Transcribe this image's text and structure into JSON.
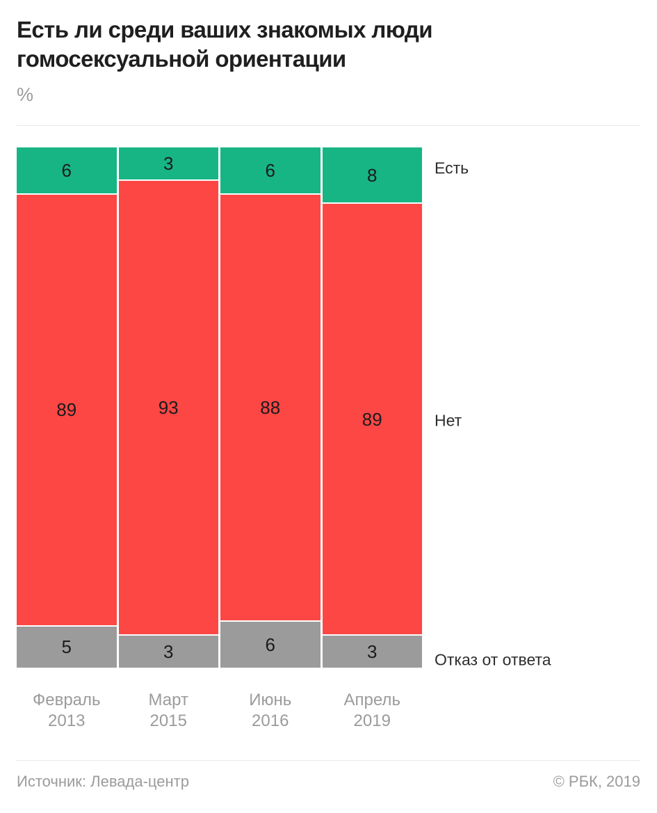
{
  "header": {
    "title": "Есть ли среди ваших знакомых люди гомосексуальной ориентации",
    "unit_label": "%"
  },
  "chart_data": {
    "type": "bar",
    "stacked": true,
    "orientation": "vertical",
    "unit": "%",
    "title": "Есть ли среди ваших знакомых люди гомосексуальной ориентации",
    "categories": [
      [
        "Февраль",
        "2013"
      ],
      [
        "Март",
        "2015"
      ],
      [
        "Июнь",
        "2016"
      ],
      [
        "Апрель",
        "2019"
      ]
    ],
    "series": [
      {
        "name": "Есть",
        "color": "#17b583",
        "values": [
          6,
          3,
          6,
          8
        ]
      },
      {
        "name": "Нет",
        "color": "#fc4745",
        "values": [
          89,
          93,
          88,
          89
        ]
      },
      {
        "name": "Отказ от ответа",
        "color": "#9b9b9b",
        "values": [
          5,
          3,
          6,
          3
        ]
      }
    ],
    "legend_position": "right",
    "grid": false,
    "value_labels": "inside-center",
    "label_color": "#1b1b1b",
    "axis_label_color": "#9b9b9b"
  },
  "footer": {
    "source": "Источник: Левада-центр",
    "copyright": "© РБК, 2019"
  }
}
